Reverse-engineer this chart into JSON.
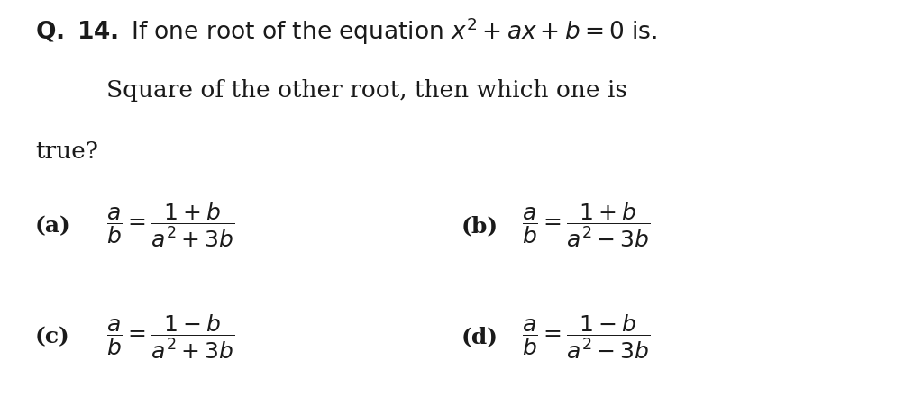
{
  "bg_color": "#ffffff",
  "text_color": "#1a1a1a",
  "figsize": [
    10.24,
    4.4
  ],
  "dpi": 100,
  "title_q": "Q. 14.",
  "title_rest1": " If one root of the equation $x^2 + ax + b = 0$ is.",
  "title_line2": "Square of the other root, then which one is",
  "title_line3": "true?",
  "opt_a_label": "(a)",
  "opt_a_expr": "$\\dfrac{a}{b} = \\dfrac{1+b}{a^2+3b}$",
  "opt_b_label": "(b)",
  "opt_b_expr": "$\\dfrac{a}{b} = \\dfrac{1+b}{a^2-3b}$",
  "opt_c_label": "(c)",
  "opt_c_expr": "$\\dfrac{a}{b} = \\dfrac{1-b}{a^2+3b}$",
  "opt_d_label": "(d)",
  "opt_d_expr": "$\\dfrac{a}{b} = \\dfrac{1-b}{a^2-3b}$",
  "label_fs": 18,
  "title_fs": 19,
  "expr_fs": 18
}
